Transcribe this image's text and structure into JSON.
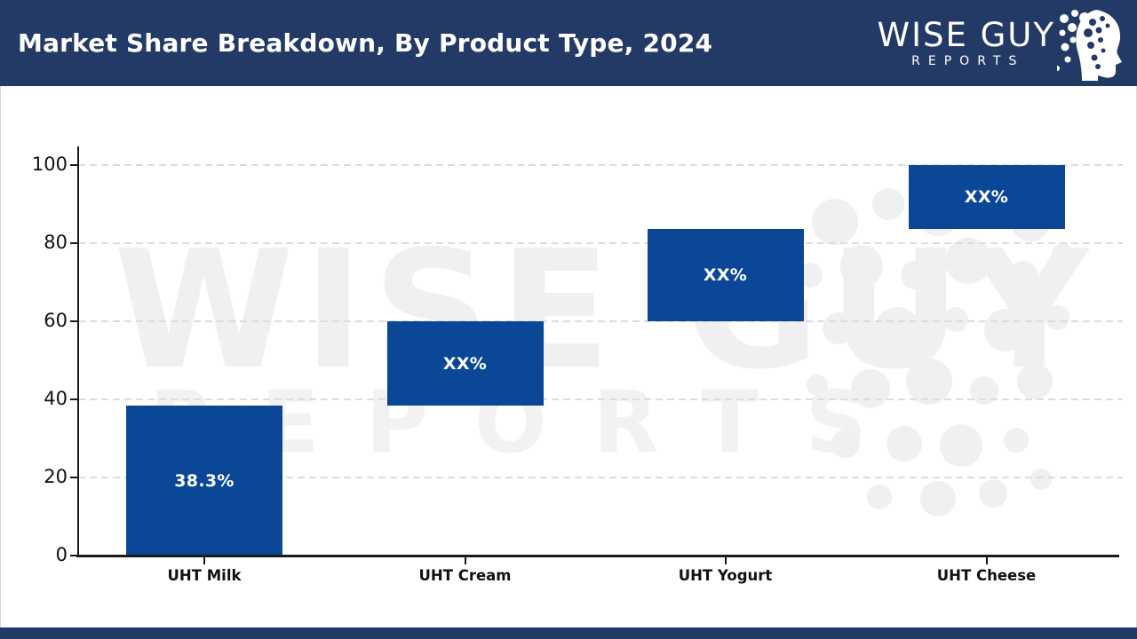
{
  "header": {
    "title": "Market Share Breakdown, By Product Type, 2024",
    "logo": {
      "line1": "WISE GUY",
      "line2": "REPORTS"
    }
  },
  "watermark": {
    "line1": "WISE GUY",
    "line2": "REPORTS"
  },
  "chart_data": {
    "type": "bar",
    "subtype": "waterfall",
    "title": "Market Share Breakdown, By Product Type, 2024",
    "categories": [
      "UHT Milk",
      "UHT Cream",
      "UHT Yogurt",
      "UHT Cheese"
    ],
    "series": [
      {
        "name": "Market Share",
        "segments": [
          {
            "category": "UHT Milk",
            "from": 0,
            "to": 38.3,
            "label": "38.3%"
          },
          {
            "category": "UHT Cream",
            "from": 38.3,
            "to": 60,
            "label": "XX%"
          },
          {
            "category": "UHT Yogurt",
            "from": 60,
            "to": 83.7,
            "label": "XX%"
          },
          {
            "category": "UHT Cheese",
            "from": 83.7,
            "to": 100,
            "label": "XX%"
          }
        ]
      }
    ],
    "xlabel": "",
    "ylabel": "",
    "ylim": [
      0,
      100
    ],
    "yticks": [
      0,
      20,
      40,
      60,
      80,
      100
    ],
    "grid": "dashed-horizontal-gray",
    "legend": "none"
  },
  "colors": {
    "header_bg": "#243a66",
    "footer_bg": "#243a66",
    "bar": "#0b4797",
    "bar_label": "#ffffff",
    "grid": "#dcdcdc",
    "axis": "#1a1a1a",
    "watermark": "#f0f0f2"
  }
}
